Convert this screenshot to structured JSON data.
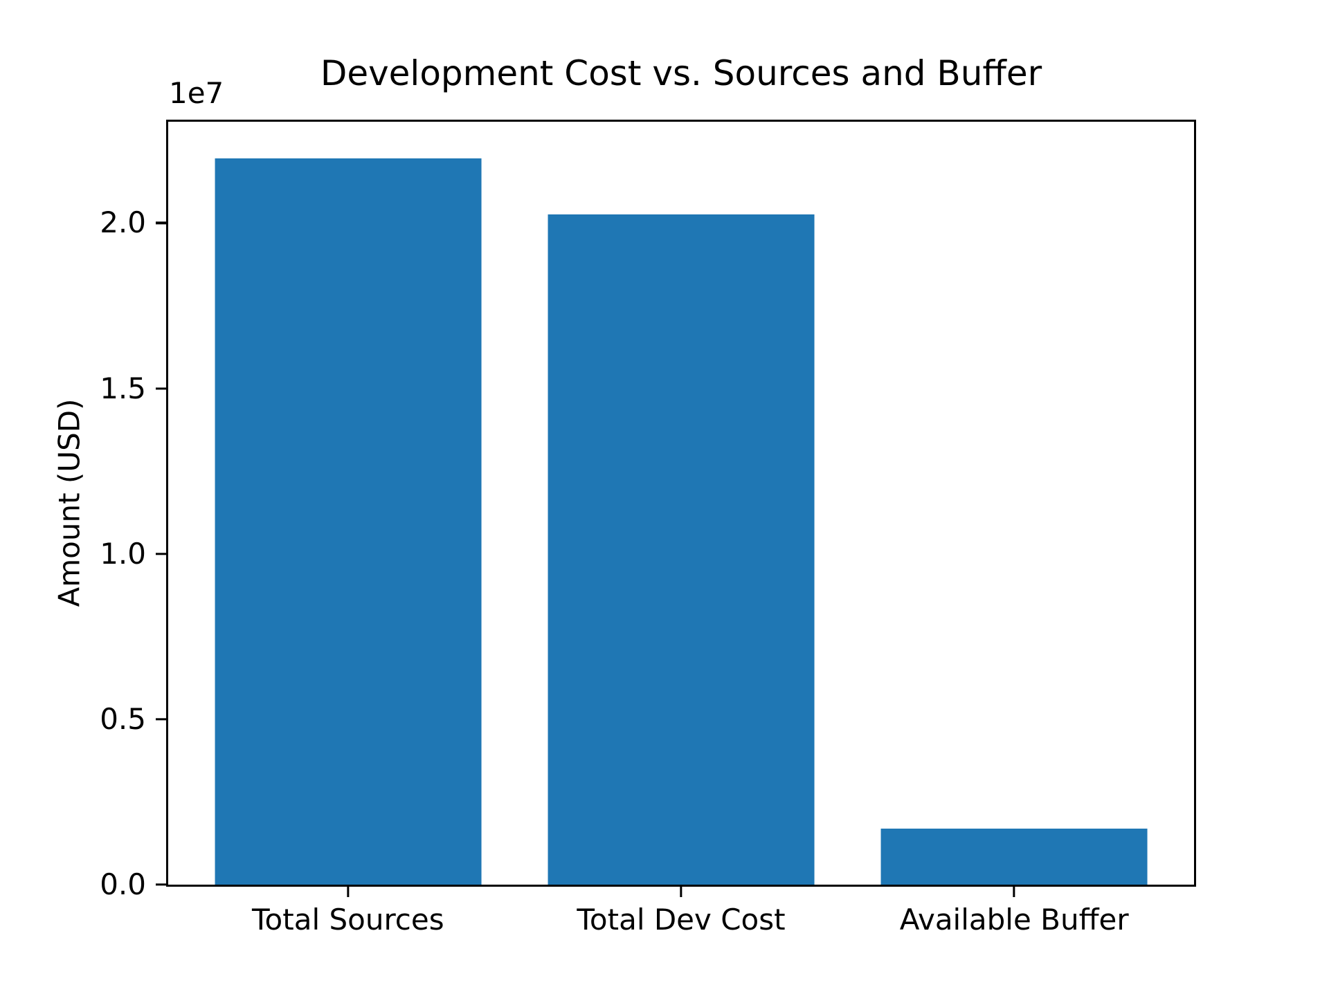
{
  "chart_data": {
    "type": "bar",
    "title": "Development Cost vs. Sources and Buffer",
    "xlabel": "",
    "ylabel": "Amount (USD)",
    "y_offset_label": "1e7",
    "categories": [
      "Total Sources",
      "Total Dev Cost",
      "Available Buffer"
    ],
    "values": [
      21960000,
      20260000,
      1700000
    ],
    "bar_color": "#1f77b4",
    "bar_width": 0.8,
    "ylim": [
      0,
      23060000
    ],
    "xlim": [
      -0.54,
      2.54
    ],
    "yticks": [
      0,
      5000000,
      10000000,
      15000000,
      20000000
    ],
    "ytick_labels": [
      "0.0",
      "0.5",
      "1.0",
      "1.5",
      "2.0"
    ],
    "grid": false,
    "legend": null
  }
}
